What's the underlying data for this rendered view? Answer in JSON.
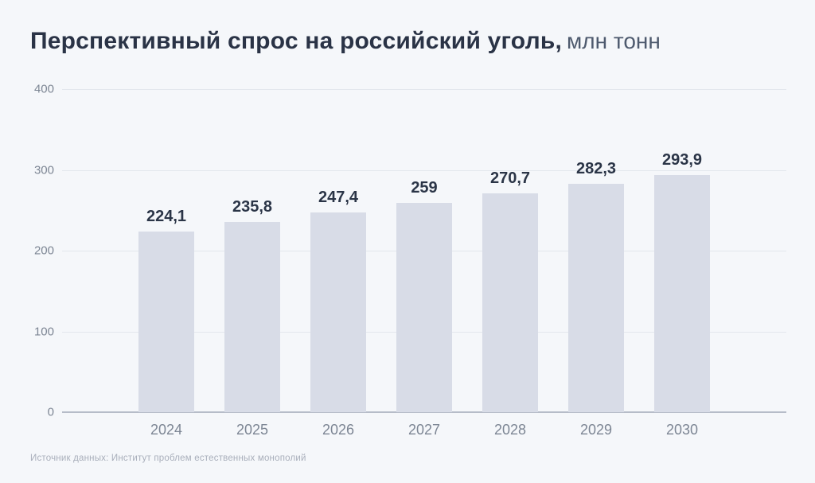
{
  "header": {
    "title_bold": "Перспективный спрос на российский уголь,",
    "title_units": "млн тонн"
  },
  "chart_data": {
    "type": "bar",
    "title": "Перспективный спрос на российский уголь, млн тонн",
    "categories": [
      "2024",
      "2025",
      "2026",
      "2027",
      "2028",
      "2029",
      "2030"
    ],
    "values": [
      224.1,
      235.8,
      247.4,
      259,
      270.7,
      282.3,
      293.9
    ],
    "value_labels": [
      "224,1",
      "235,8",
      "247,4",
      "259",
      "270,7",
      "282,3",
      "293,9"
    ],
    "xlabel": "",
    "ylabel": "",
    "ylim": [
      0,
      400
    ],
    "yticks": [
      0,
      100,
      200,
      300,
      400
    ],
    "grid": true,
    "legend": false,
    "colors": {
      "background": "#f5f7fa",
      "bar": "#d8dce7",
      "title": "#2a3346",
      "subtitle": "#4e5a6e",
      "value_label": "#2b3547",
      "axis_label": "#7d8694",
      "gridline": "#e3e7ed",
      "baseline": "#b6bcc8",
      "source": "#a9afbb"
    }
  },
  "footer": {
    "source": "Источник данных: Институт проблем естественных монополий"
  }
}
